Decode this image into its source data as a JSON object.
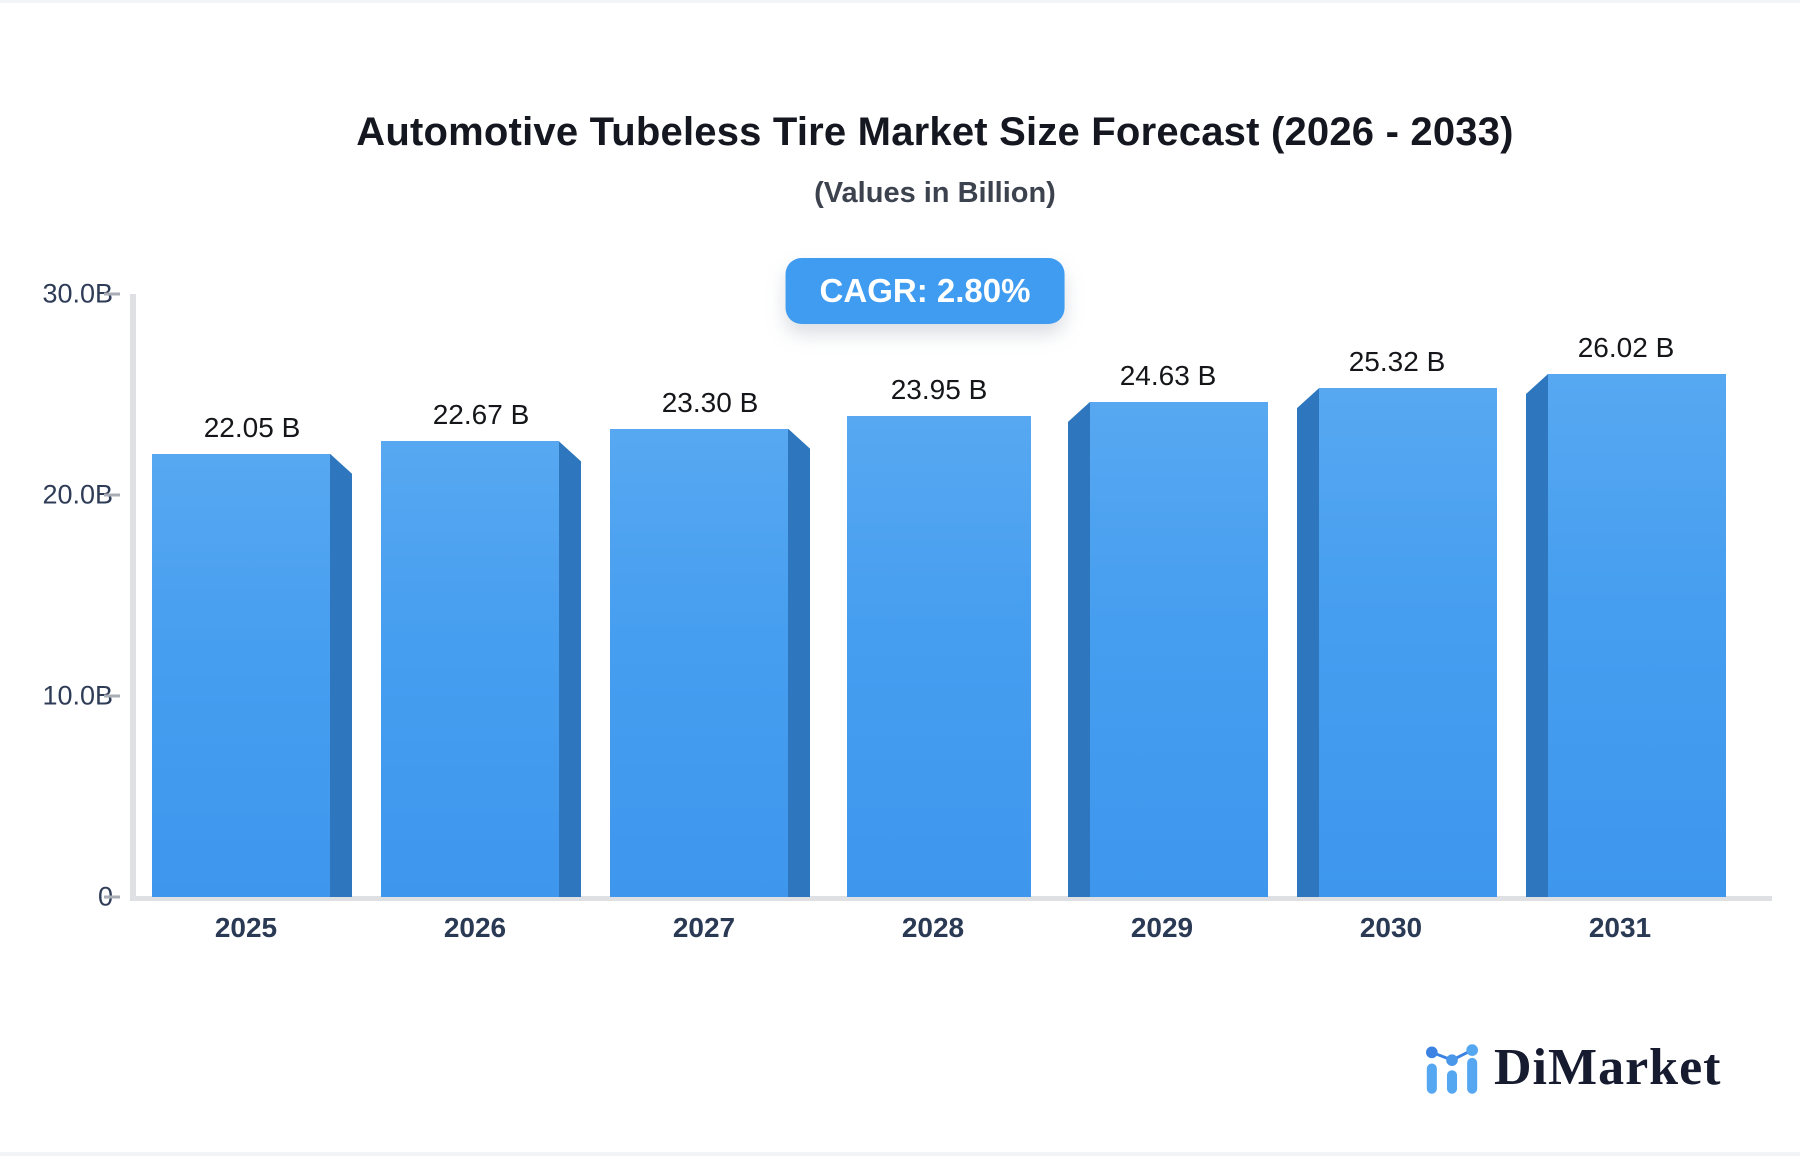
{
  "header": {
    "title": "Automotive Tubeless Tire Market Size Forecast (2026 - 2033)",
    "subtitle": "(Values in Billion)"
  },
  "badge": {
    "label": "CAGR: 2.80%"
  },
  "chart_data": {
    "type": "bar",
    "title": "Automotive Tubeless Tire Market Size Forecast (2026 - 2033)",
    "subtitle": "(Values in Billion)",
    "categories": [
      "2025",
      "2026",
      "2027",
      "2028",
      "2029",
      "2030",
      "2031"
    ],
    "values": [
      22.05,
      22.67,
      23.3,
      23.95,
      24.63,
      25.32,
      26.02
    ],
    "value_labels": [
      "22.05 B",
      "22.67 B",
      "23.30 B",
      "23.95 B",
      "24.63 B",
      "25.32 B",
      "26.02 B"
    ],
    "unit": "Billion",
    "cagr": "2.80%",
    "ylim": [
      0,
      30
    ],
    "yticks": [
      {
        "label": "30.0B",
        "value": 30
      },
      {
        "label": "20.0B",
        "value": 20
      },
      {
        "label": "10.0B",
        "value": 10
      },
      {
        "label": "0",
        "value": 0
      }
    ],
    "grid": false,
    "legend": false,
    "bar_color": "#469ef0",
    "bar_side_color": "#2e77be",
    "style": "3d-beveled-bars"
  },
  "logo": {
    "text": "DiMarket",
    "icon": "bar-chart-with-trend-dots"
  }
}
